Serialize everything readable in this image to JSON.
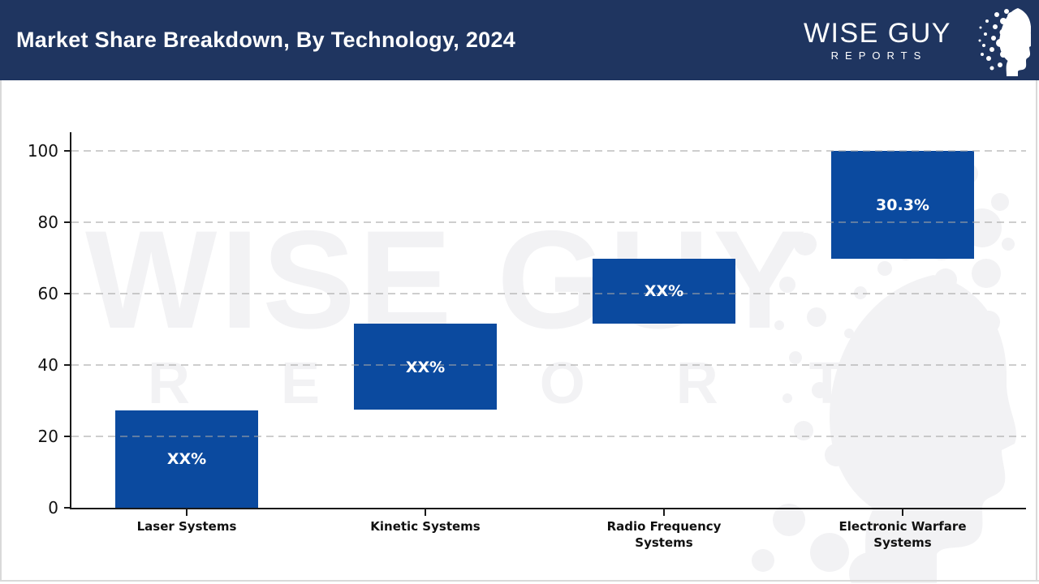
{
  "header": {
    "title": "Market Share Breakdown, By Technology, 2024",
    "background_color": "#1f3560",
    "logo": {
      "line1": "WISE GUY",
      "line2": "REPORTS"
    }
  },
  "watermark": {
    "big_text": "WISE GUY",
    "small_text": "R E P O R T S"
  },
  "chart_data": {
    "type": "bar",
    "subtype": "waterfall",
    "title": "Market Share Breakdown, By Technology, 2024",
    "xlabel": "",
    "ylabel": "",
    "ylim": [
      0,
      105
    ],
    "yticks": [
      0,
      20,
      40,
      60,
      80,
      100
    ],
    "grid": "horizontal dashed",
    "legend": "none",
    "bar_color": "#0b4a9f",
    "bar_label_color": "#ffffff",
    "categories": [
      "Laser Systems",
      "Kinetic Systems",
      "Radio Frequency\nSystems",
      "Electronic Warfare\nSystems"
    ],
    "segments": [
      {
        "category": "Laser Systems",
        "start": 0,
        "end": 27.3,
        "height": 27.3,
        "label": "XX%"
      },
      {
        "category": "Kinetic Systems",
        "start": 27.3,
        "end": 51.5,
        "height": 24.2,
        "label": "XX%"
      },
      {
        "category": "Radio Frequency Systems",
        "start": 51.5,
        "end": 69.7,
        "height": 18.2,
        "label": "XX%"
      },
      {
        "category": "Electronic Warfare Systems",
        "start": 69.7,
        "end": 100,
        "height": 30.3,
        "label": "30.3%"
      }
    ]
  }
}
